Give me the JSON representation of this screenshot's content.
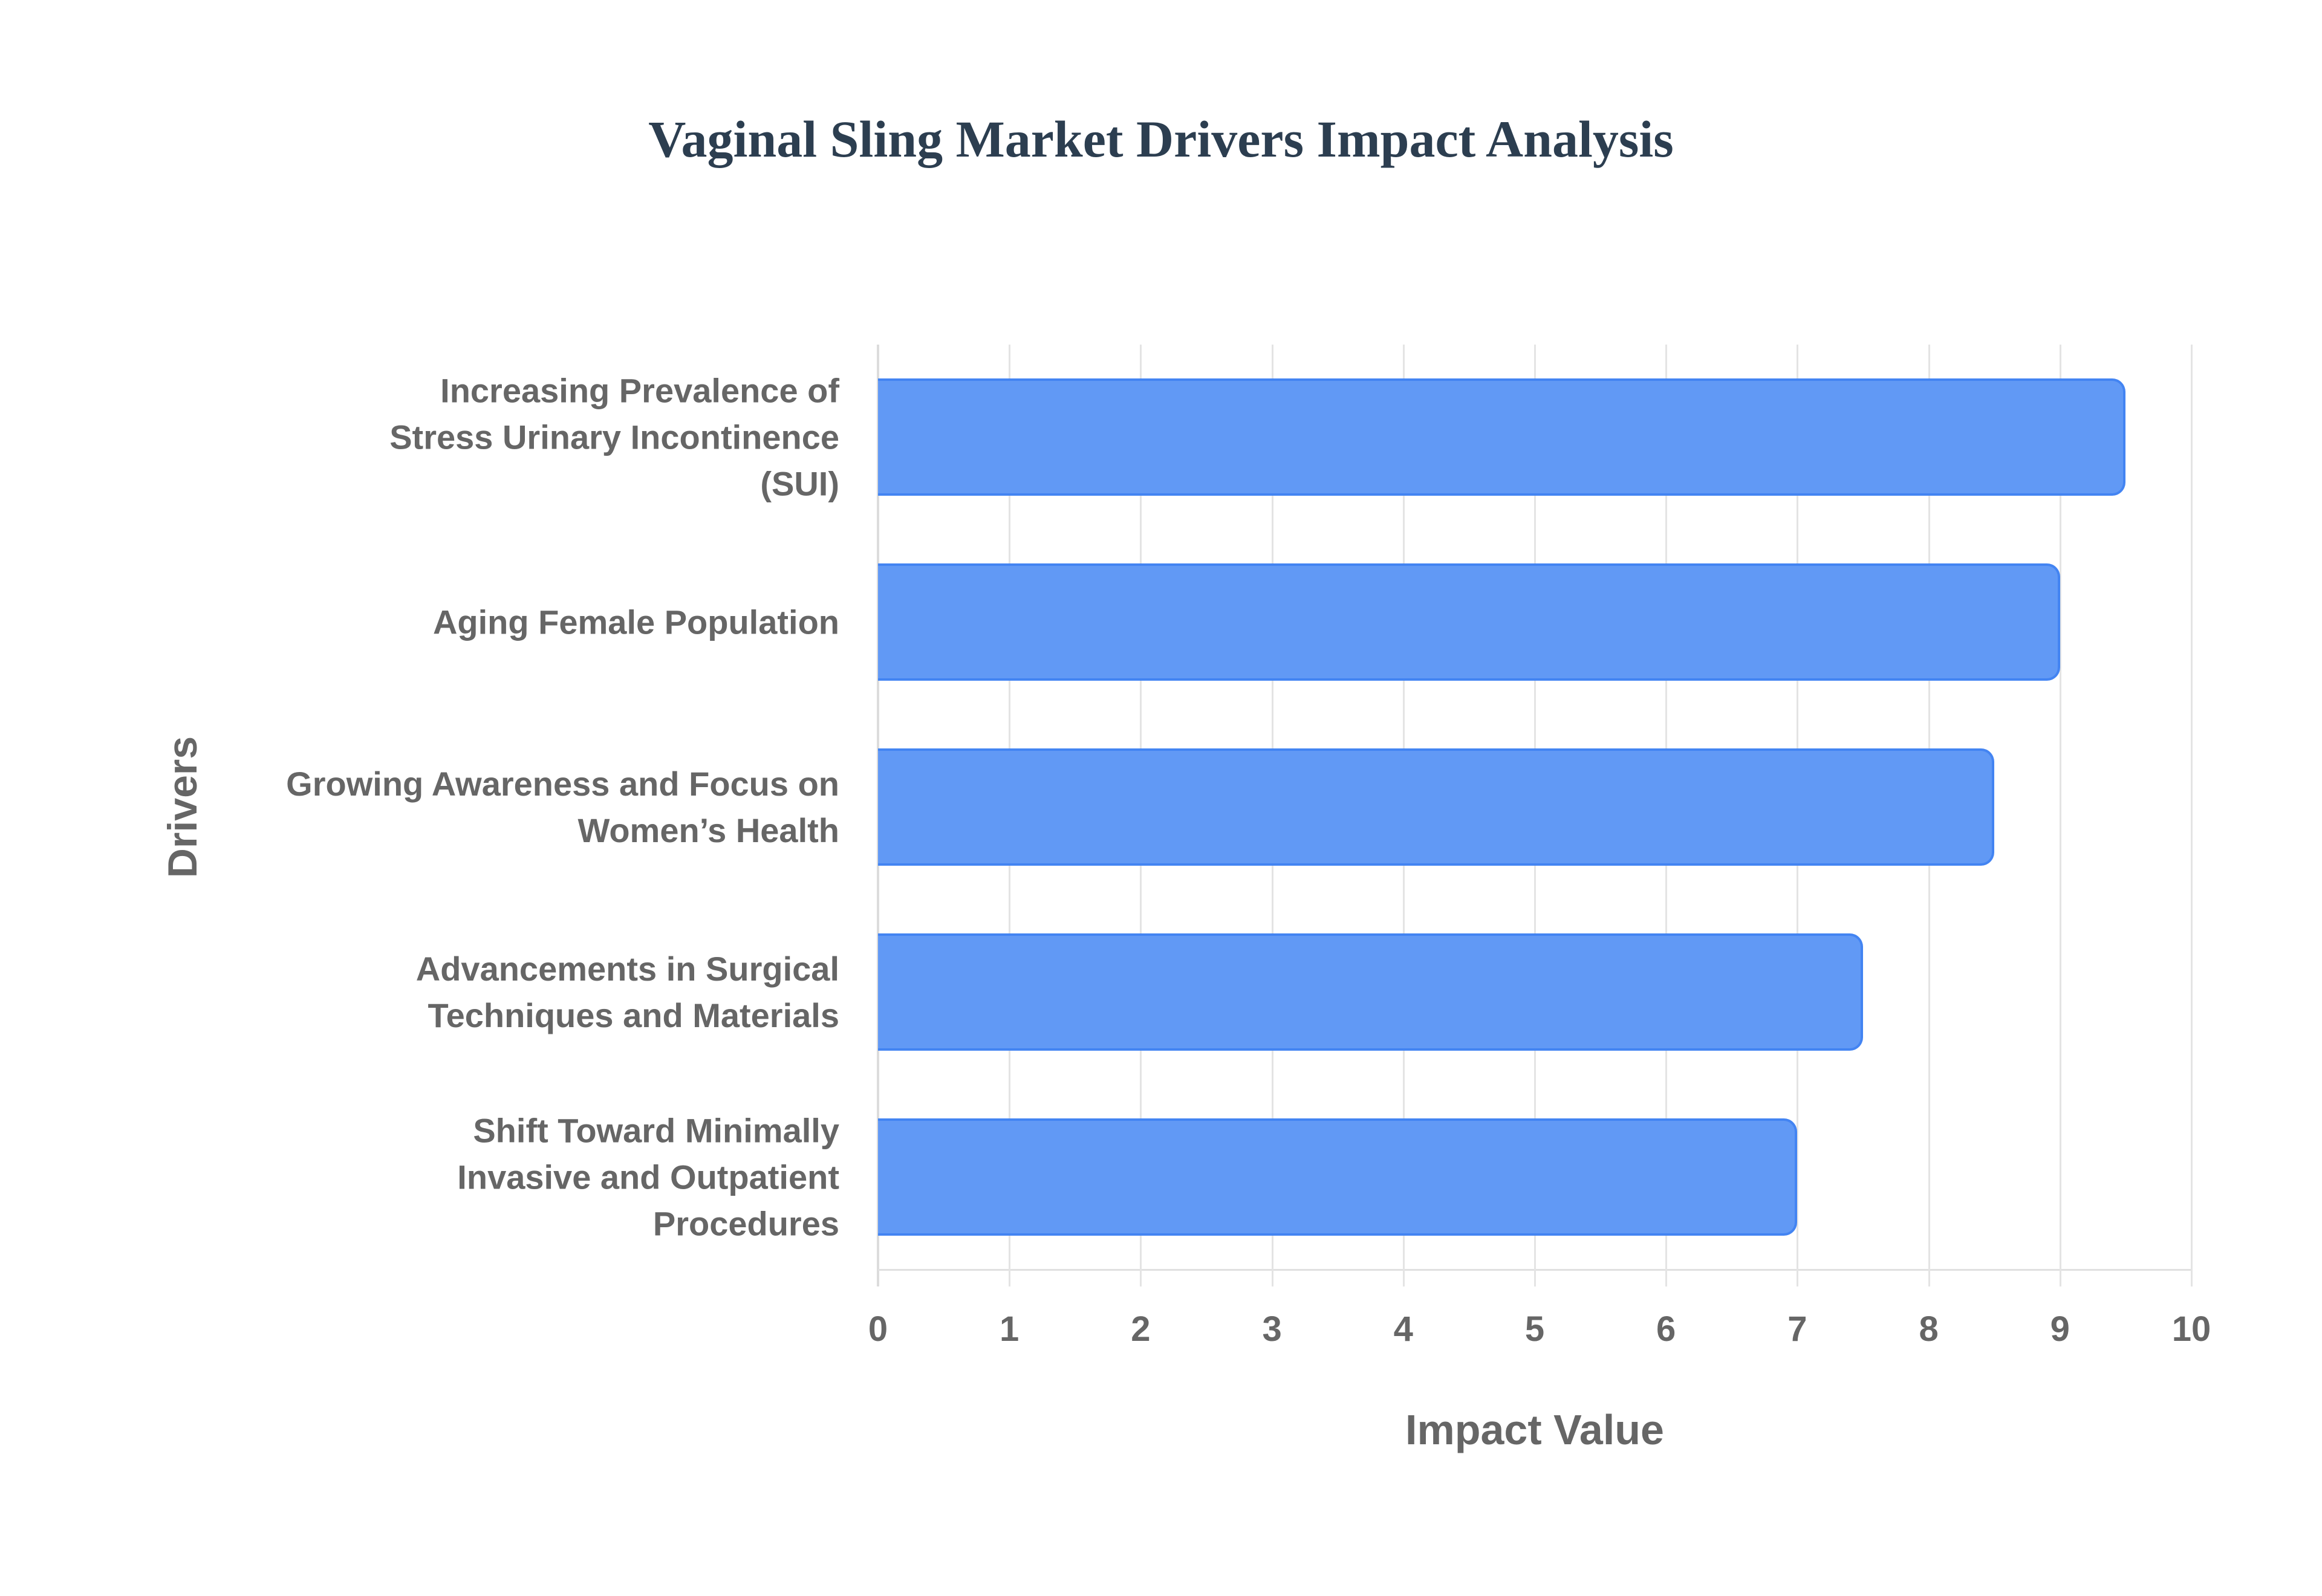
{
  "chart_data": {
    "type": "bar",
    "orientation": "horizontal",
    "title": "Vaginal Sling Market Drivers Impact Analysis",
    "xlabel": "Impact Value",
    "ylabel": "Drivers",
    "xlim": [
      0,
      10
    ],
    "x_ticks": [
      "0",
      "1",
      "2",
      "3",
      "4",
      "5",
      "6",
      "7",
      "8",
      "9",
      "10"
    ],
    "grid": true,
    "legend": null,
    "categories": [
      "Increasing Prevalence of Stress Urinary Incontinence (SUI)",
      "Aging Female Population",
      "Growing Awareness and Focus on Women’s Health",
      "Advancements in Surgical Techniques and Materials",
      "Shift Toward Minimally Invasive and Outpatient Procedures"
    ],
    "category_lines": [
      [
        "Increasing Prevalence of",
        "Stress Urinary Incontinence",
        "(SUI)"
      ],
      [
        "Aging Female Population"
      ],
      [
        "Growing Awareness and Focus on",
        "Women’s Health"
      ],
      [
        "Advancements in Surgical",
        "Techniques and Materials"
      ],
      [
        "Shift Toward Minimally",
        "Invasive and Outpatient",
        "Procedures"
      ]
    ],
    "values": [
      9.5,
      9.0,
      8.5,
      7.5,
      7.0
    ],
    "colors": {
      "bar_fill": "#6199f5",
      "bar_border": "#4384f2",
      "title": "#2c3e50",
      "labels": "#666666",
      "grid": "#e4e4e4"
    }
  }
}
